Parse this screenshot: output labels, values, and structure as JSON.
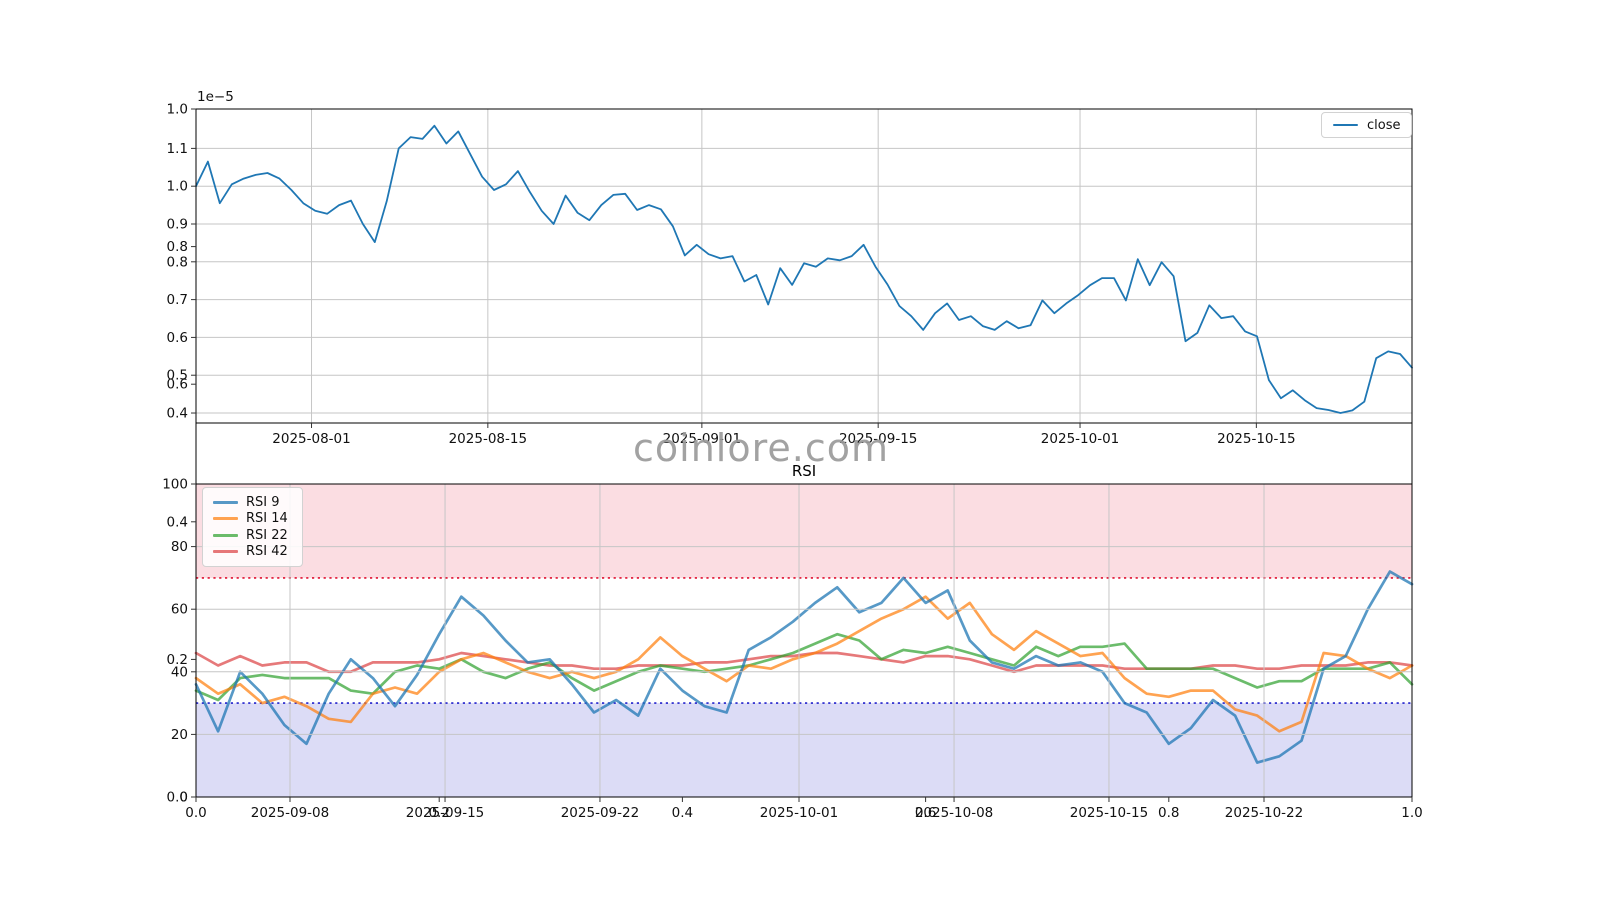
{
  "watermark": {
    "text": "coinlore.com",
    "color": "#9b9b9b"
  },
  "colors": {
    "grid": "#c6c6c6",
    "spine": "#000000",
    "tick_text": "#111111",
    "overbought_fill": "#fbdde2",
    "oversold_fill": "#dcdcf6",
    "overbought_line": "#e01030",
    "oversold_line": "#2020cc",
    "legend_border": "#d2d2d2"
  },
  "chart_data": [
    {
      "type": "line",
      "name": "price",
      "title": "",
      "offset_text": "1e−5",
      "unit": "1e-5",
      "x_start": "2025-07-23",
      "x_end": "2025-10-27",
      "legend_position": "upper right",
      "x_ticks": [
        {
          "label": "2025-08-01",
          "f": 0.095
        },
        {
          "label": "2025-08-15",
          "f": 0.24
        },
        {
          "label": "2025-09-01",
          "f": 0.416
        },
        {
          "label": "2025-09-15",
          "f": 0.561
        },
        {
          "label": "2025-10-01",
          "f": 0.727
        },
        {
          "label": "2025-10-15",
          "f": 0.872
        }
      ],
      "y_ticks": [
        {
          "label": "1.1",
          "v": 1.1
        },
        {
          "label": "1.0",
          "v": 1.0
        },
        {
          "label": "0.9",
          "v": 0.9
        },
        {
          "label": "0.8",
          "v": 0.8
        },
        {
          "label": "0.7",
          "v": 0.7
        },
        {
          "label": "0.6",
          "v": 0.6
        },
        {
          "label": "0.5",
          "v": 0.5
        },
        {
          "label": "0.4",
          "v": 0.4
        }
      ],
      "ylim": [
        0.3736,
        1.2042
      ],
      "series": [
        {
          "name": "close",
          "color": "#1f77b4",
          "width": 1.8,
          "values": [
            1.0,
            1.065,
            0.955,
            1.005,
            1.02,
            1.03,
            1.035,
            1.02,
            0.99,
            0.955,
            0.935,
            0.927,
            0.95,
            0.962,
            0.9,
            0.852,
            0.96,
            1.1,
            1.13,
            1.125,
            1.16,
            1.113,
            1.145,
            1.085,
            1.025,
            0.99,
            1.005,
            1.04,
            0.985,
            0.935,
            0.9,
            0.975,
            0.93,
            0.91,
            0.95,
            0.977,
            0.98,
            0.937,
            0.95,
            0.939,
            0.894,
            0.817,
            0.845,
            0.82,
            0.809,
            0.815,
            0.748,
            0.765,
            0.687,
            0.783,
            0.739,
            0.796,
            0.787,
            0.809,
            0.804,
            0.815,
            0.845,
            0.787,
            0.74,
            0.683,
            0.656,
            0.62,
            0.664,
            0.69,
            0.646,
            0.656,
            0.63,
            0.62,
            0.643,
            0.624,
            0.632,
            0.698,
            0.664,
            0.69,
            0.712,
            0.738,
            0.757,
            0.757,
            0.698,
            0.807,
            0.738,
            0.799,
            0.762,
            0.59,
            0.612,
            0.685,
            0.651,
            0.656,
            0.616,
            0.603,
            0.487,
            0.439,
            0.46,
            0.434,
            0.413,
            0.408,
            0.4,
            0.407,
            0.43,
            0.545,
            0.563,
            0.556,
            0.52
          ]
        }
      ]
    },
    {
      "type": "line",
      "name": "rsi",
      "title": "RSI",
      "x_start": "2025-09-04",
      "x_end": "2025-10-29",
      "legend_position": "upper left",
      "ylim": [
        0,
        100
      ],
      "thresholds": {
        "overbought": 70,
        "oversold": 30
      },
      "x_ticks": [
        {
          "label": "2025-09-08",
          "f": 0.0773
        },
        {
          "label": "2025-09-15",
          "f": 0.2048
        },
        {
          "label": "2025-09-22",
          "f": 0.3322
        },
        {
          "label": "2025-10-01",
          "f": 0.4959
        },
        {
          "label": "2025-10-08",
          "f": 0.6234
        },
        {
          "label": "2025-10-15",
          "f": 0.7508
        },
        {
          "label": "2025-10-22",
          "f": 0.8783
        }
      ],
      "y_ticks": [
        {
          "label": "100",
          "v": 100
        },
        {
          "label": "80",
          "v": 80
        },
        {
          "label": "60",
          "v": 60
        },
        {
          "label": "40",
          "v": 40
        },
        {
          "label": "20",
          "v": 20
        },
        {
          "label": "0",
          "v": 0
        }
      ],
      "series": [
        {
          "name": "RSI 9",
          "color": "rgba(31,119,180,0.75)",
          "width": 2.7,
          "values": [
            36,
            21,
            40,
            33,
            23,
            17,
            33,
            44,
            38,
            29,
            39,
            52,
            64,
            58,
            50,
            43,
            44,
            36,
            27,
            31,
            26,
            41,
            34,
            29,
            27,
            47,
            51,
            56,
            62,
            67,
            59,
            62,
            70,
            62,
            66,
            50,
            43,
            41,
            45,
            42,
            43,
            40,
            30,
            27,
            17,
            22,
            31,
            26,
            11,
            13,
            18,
            41,
            45,
            60,
            72,
            68
          ]
        },
        {
          "name": "RSI 14",
          "color": "rgba(255,127,14,0.72)",
          "width": 2.7,
          "values": [
            38,
            33,
            36,
            30,
            32,
            29,
            25,
            24,
            33,
            35,
            33,
            40,
            44,
            46,
            43,
            40,
            38,
            40,
            38,
            40,
            44,
            51,
            45,
            41,
            37,
            42,
            41,
            44,
            46,
            49,
            53,
            57,
            60,
            64,
            57,
            62,
            52,
            47,
            53,
            49,
            45,
            46,
            38,
            33,
            32,
            34,
            34,
            28,
            26,
            21,
            24,
            46,
            45,
            41,
            38,
            42
          ]
        },
        {
          "name": "RSI 22",
          "color": "rgba(44,160,44,0.70)",
          "width": 2.7,
          "values": [
            34,
            31,
            38,
            39,
            38,
            38,
            38,
            34,
            33,
            40,
            42,
            41,
            44,
            40,
            38,
            41,
            43,
            38,
            34,
            37,
            40,
            42,
            41,
            40,
            41,
            42,
            44,
            46,
            49,
            52,
            50,
            44,
            47,
            46,
            48,
            46,
            44,
            42,
            48,
            45,
            48,
            48,
            49,
            41,
            41,
            41,
            41,
            38,
            35,
            37,
            37,
            41,
            41,
            41,
            43,
            36
          ]
        },
        {
          "name": "RSI 42",
          "color": "rgba(214,39,40,0.62)",
          "width": 2.7,
          "values": [
            46,
            42,
            45,
            42,
            43,
            43,
            40,
            40,
            43,
            43,
            43,
            44,
            46,
            45,
            44,
            43,
            42,
            42,
            41,
            41,
            42,
            42,
            42,
            43,
            43,
            44,
            45,
            45,
            46,
            46,
            45,
            44,
            43,
            45,
            45,
            44,
            42,
            40,
            42,
            42,
            42,
            42,
            41,
            41,
            41,
            41,
            42,
            42,
            41,
            41,
            42,
            42,
            42,
            43,
            43,
            42
          ]
        }
      ]
    }
  ],
  "overlay_axis": {
    "x_ticks": [
      "0.0",
      "0.2",
      "0.4",
      "0.6",
      "0.8",
      "1.0"
    ],
    "y_ticks": [
      "1.0",
      "0.8",
      "0.6",
      "0.4",
      "0.2",
      "0.0"
    ]
  }
}
